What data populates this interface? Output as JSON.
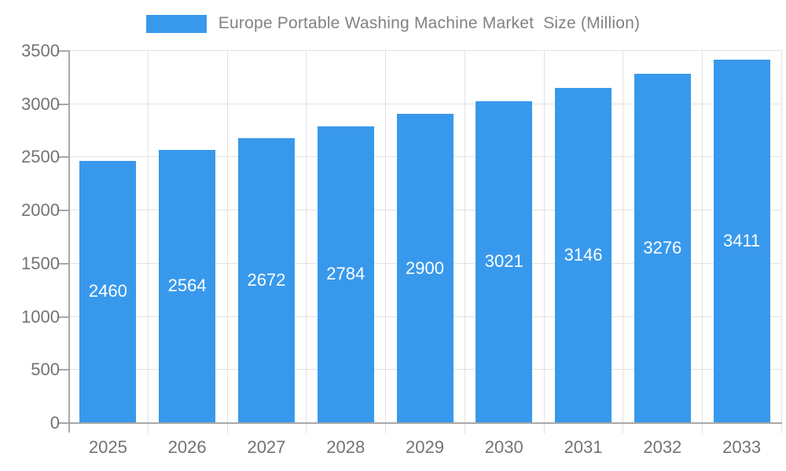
{
  "chart_data": {
    "type": "bar",
    "legend": "Europe Portable Washing Machine Market  Size (Million)",
    "legend_position": "top",
    "categories": [
      "2025",
      "2026",
      "2027",
      "2028",
      "2029",
      "2030",
      "2031",
      "2032",
      "2033"
    ],
    "series": [
      {
        "name": "Europe Portable Washing Machine Market  Size (Million)",
        "values": [
          2460,
          2564,
          2672,
          2784,
          2900,
          3021,
          3146,
          3276,
          3411
        ]
      }
    ],
    "ylim": [
      0,
      3500
    ],
    "yticks": [
      0,
      500,
      1000,
      1500,
      2000,
      2500,
      3000,
      3500
    ],
    "grid": true,
    "bar_labels": "inside-center",
    "colors": {
      "bar": "#3899EC",
      "bar_label": "#FFFFFF",
      "grid": "#E2E2E2",
      "axis": "#A8A8A8",
      "tick_text": "#737373",
      "legend_text": "#828282",
      "background": "#FFFFFF"
    }
  }
}
